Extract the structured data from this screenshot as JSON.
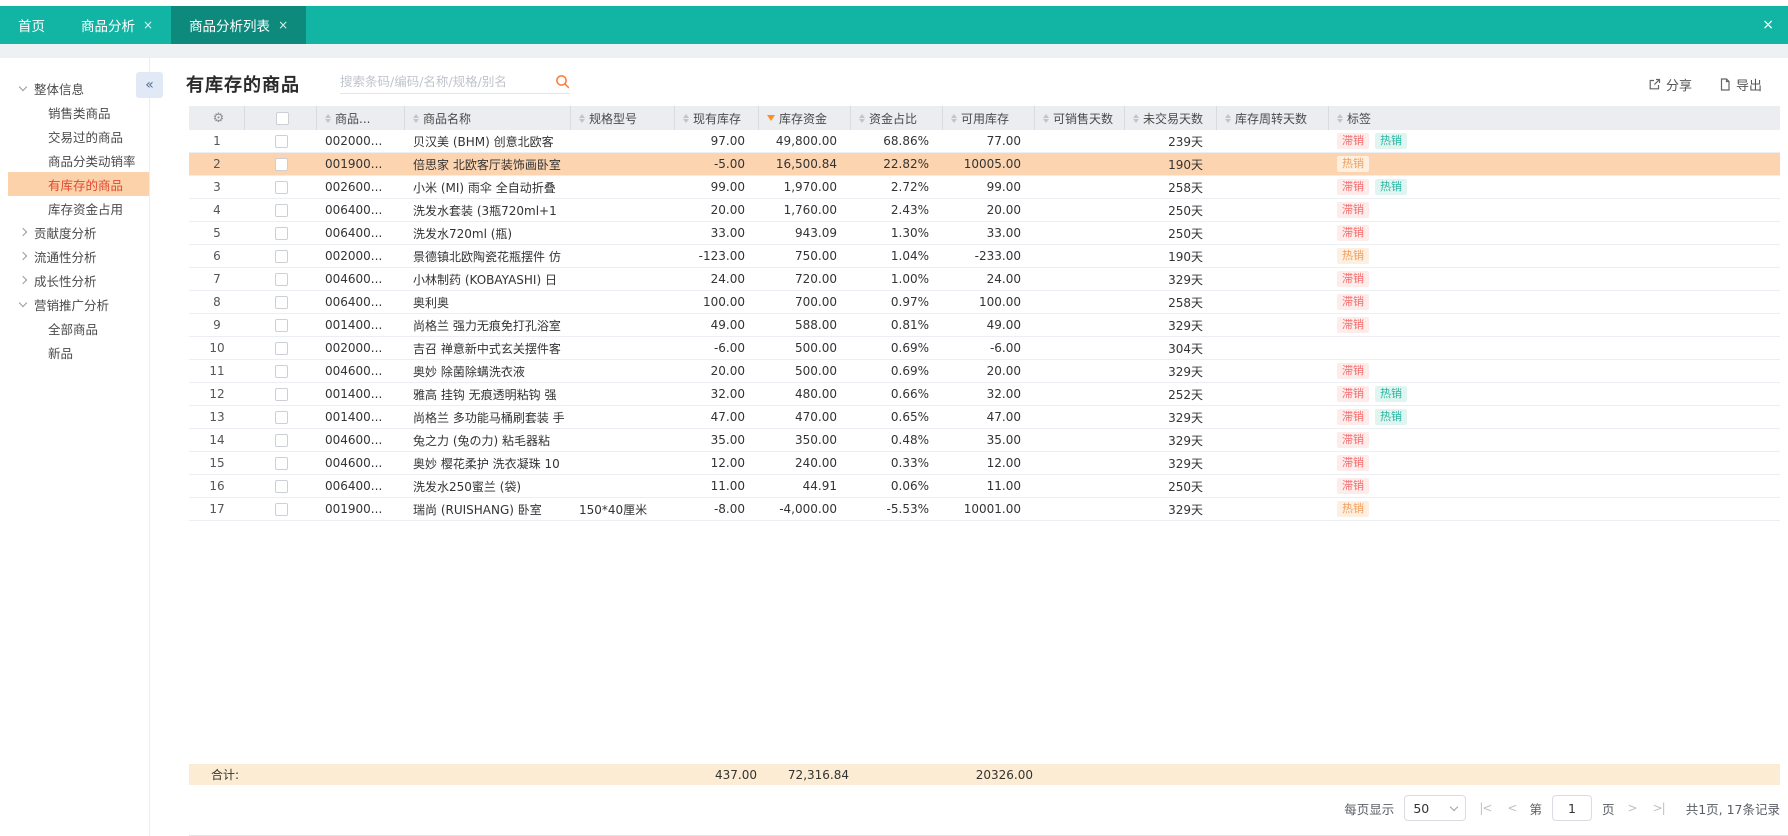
{
  "topbar": {
    "tabs": [
      {
        "label": "首页",
        "closable": false,
        "active": false
      },
      {
        "label": "商品分析",
        "closable": true,
        "active": false
      },
      {
        "label": "商品分析列表",
        "closable": true,
        "active": true
      }
    ],
    "close_all": "×"
  },
  "sidebar": {
    "items": [
      {
        "label": "整体信息",
        "level": 1,
        "chevron": "down"
      },
      {
        "label": "销售类商品",
        "level": 2
      },
      {
        "label": "交易过的商品",
        "level": 2
      },
      {
        "label": "商品分类动销率",
        "level": 2
      },
      {
        "label": "有库存的商品",
        "level": 2,
        "selected": true
      },
      {
        "label": "库存资金占用",
        "level": 2
      },
      {
        "label": "贡献度分析",
        "level": 1,
        "chevron": "right"
      },
      {
        "label": "流通性分析",
        "level": 1,
        "chevron": "right"
      },
      {
        "label": "成长性分析",
        "level": 1,
        "chevron": "right"
      },
      {
        "label": "营销推广分析",
        "level": 1,
        "chevron": "down"
      },
      {
        "label": "全部商品",
        "level": 2
      },
      {
        "label": "新品",
        "level": 2
      }
    ]
  },
  "header": {
    "title": "有库存的商品",
    "search_placeholder": "搜索条码/编码/名称/规格/别名",
    "share_label": "分享",
    "export_label": "导出",
    "collapse_glyph": "«"
  },
  "table": {
    "columns": [
      {
        "id": "num",
        "label": "",
        "icon": "gear-icon"
      },
      {
        "id": "check",
        "label": "",
        "icon": "checkbox"
      },
      {
        "id": "code",
        "label": "商品...",
        "sortable": true
      },
      {
        "id": "name",
        "label": "商品名称",
        "sortable": true
      },
      {
        "id": "spec",
        "label": "规格型号",
        "sortable": true
      },
      {
        "id": "stock",
        "label": "现有库存",
        "sortable": true
      },
      {
        "id": "fund",
        "label": "库存资金",
        "sortable": true,
        "sort": "desc"
      },
      {
        "id": "ratio",
        "label": "资金占比",
        "sortable": true
      },
      {
        "id": "available",
        "label": "可用库存",
        "sortable": true
      },
      {
        "id": "sell_days",
        "label": "可销售天数",
        "sortable": true
      },
      {
        "id": "idle_days",
        "label": "未交易天数",
        "sortable": true
      },
      {
        "id": "turnover",
        "label": "库存周转天数",
        "sortable": true
      },
      {
        "id": "tags",
        "label": "标签",
        "sortable": true
      }
    ],
    "rows": [
      {
        "num": "1",
        "code": "002000...",
        "name": "贝汉美 (BHM) 创意北欧客",
        "spec": "",
        "stock": "97.00",
        "fund": "49,800.00",
        "ratio": "68.86%",
        "available": "77.00",
        "sell_days": "",
        "idle_days": "239天",
        "turnover": "",
        "tags": [
          {
            "text": "滞销",
            "type": "stale"
          },
          {
            "text": "热销",
            "type": "hot-teal"
          }
        ]
      },
      {
        "num": "2",
        "code": "001900...",
        "name": "倍思家 北欧客厅装饰画卧室",
        "spec": "",
        "stock": "-5.00",
        "fund": "16,500.84",
        "ratio": "22.82%",
        "available": "10005.00",
        "sell_days": "",
        "idle_days": "190天",
        "turnover": "",
        "tags": [
          {
            "text": "热销",
            "type": "hot-orange"
          }
        ],
        "highlight": true
      },
      {
        "num": "3",
        "code": "002600...",
        "name": "小米 (MI) 雨伞 全自动折叠",
        "spec": "",
        "stock": "99.00",
        "fund": "1,970.00",
        "ratio": "2.72%",
        "available": "99.00",
        "sell_days": "",
        "idle_days": "258天",
        "turnover": "",
        "tags": [
          {
            "text": "滞销",
            "type": "stale"
          },
          {
            "text": "热销",
            "type": "hot-teal"
          }
        ]
      },
      {
        "num": "4",
        "code": "006400...",
        "name": "洗发水套装 (3瓶720ml+1",
        "spec": "",
        "stock": "20.00",
        "fund": "1,760.00",
        "ratio": "2.43%",
        "available": "20.00",
        "sell_days": "",
        "idle_days": "250天",
        "turnover": "",
        "tags": [
          {
            "text": "滞销",
            "type": "stale"
          }
        ]
      },
      {
        "num": "5",
        "code": "006400...",
        "name": "洗发水720ml (瓶)",
        "spec": "",
        "stock": "33.00",
        "fund": "943.09",
        "ratio": "1.30%",
        "available": "33.00",
        "sell_days": "",
        "idle_days": "250天",
        "turnover": "",
        "tags": [
          {
            "text": "滞销",
            "type": "stale"
          }
        ]
      },
      {
        "num": "6",
        "code": "002000...",
        "name": "景德镇北欧陶瓷花瓶摆件 仿",
        "spec": "",
        "stock": "-123.00",
        "fund": "750.00",
        "ratio": "1.04%",
        "available": "-233.00",
        "sell_days": "",
        "idle_days": "190天",
        "turnover": "",
        "tags": [
          {
            "text": "热销",
            "type": "hot-orange"
          }
        ]
      },
      {
        "num": "7",
        "code": "004600...",
        "name": "小林制药 (KOBAYASHI) 日",
        "spec": "",
        "stock": "24.00",
        "fund": "720.00",
        "ratio": "1.00%",
        "available": "24.00",
        "sell_days": "",
        "idle_days": "329天",
        "turnover": "",
        "tags": [
          {
            "text": "滞销",
            "type": "stale"
          }
        ]
      },
      {
        "num": "8",
        "code": "006400...",
        "name": "奥利奥",
        "spec": "",
        "stock": "100.00",
        "fund": "700.00",
        "ratio": "0.97%",
        "available": "100.00",
        "sell_days": "",
        "idle_days": "258天",
        "turnover": "",
        "tags": [
          {
            "text": "滞销",
            "type": "stale"
          }
        ]
      },
      {
        "num": "9",
        "code": "001400...",
        "name": "尚格兰 强力无痕免打孔浴室",
        "spec": "",
        "stock": "49.00",
        "fund": "588.00",
        "ratio": "0.81%",
        "available": "49.00",
        "sell_days": "",
        "idle_days": "329天",
        "turnover": "",
        "tags": [
          {
            "text": "滞销",
            "type": "stale"
          }
        ]
      },
      {
        "num": "10",
        "code": "002000...",
        "name": "吉召 禅意新中式玄关摆件客",
        "spec": "",
        "stock": "-6.00",
        "fund": "500.00",
        "ratio": "0.69%",
        "available": "-6.00",
        "sell_days": "",
        "idle_days": "304天",
        "turnover": "",
        "tags": []
      },
      {
        "num": "11",
        "code": "004600...",
        "name": "奥妙 除菌除螨洗衣液",
        "spec": "",
        "stock": "20.00",
        "fund": "500.00",
        "ratio": "0.69%",
        "available": "20.00",
        "sell_days": "",
        "idle_days": "329天",
        "turnover": "",
        "tags": [
          {
            "text": "滞销",
            "type": "stale"
          }
        ]
      },
      {
        "num": "12",
        "code": "001400...",
        "name": "雅高 挂钩 无痕透明粘钩 强",
        "spec": "",
        "stock": "32.00",
        "fund": "480.00",
        "ratio": "0.66%",
        "available": "32.00",
        "sell_days": "",
        "idle_days": "252天",
        "turnover": "",
        "tags": [
          {
            "text": "滞销",
            "type": "stale"
          },
          {
            "text": "热销",
            "type": "hot-teal"
          }
        ]
      },
      {
        "num": "13",
        "code": "001400...",
        "name": "尚格兰 多功能马桶刷套装 手",
        "spec": "",
        "stock": "47.00",
        "fund": "470.00",
        "ratio": "0.65%",
        "available": "47.00",
        "sell_days": "",
        "idle_days": "329天",
        "turnover": "",
        "tags": [
          {
            "text": "滞销",
            "type": "stale"
          },
          {
            "text": "热销",
            "type": "hot-teal"
          }
        ]
      },
      {
        "num": "14",
        "code": "004600...",
        "name": "兔之力 (兔の力) 粘毛器粘",
        "spec": "",
        "stock": "35.00",
        "fund": "350.00",
        "ratio": "0.48%",
        "available": "35.00",
        "sell_days": "",
        "idle_days": "329天",
        "turnover": "",
        "tags": [
          {
            "text": "滞销",
            "type": "stale"
          }
        ]
      },
      {
        "num": "15",
        "code": "004600...",
        "name": "奥妙 樱花柔护 洗衣凝珠 10",
        "spec": "",
        "stock": "12.00",
        "fund": "240.00",
        "ratio": "0.33%",
        "available": "12.00",
        "sell_days": "",
        "idle_days": "329天",
        "turnover": "",
        "tags": [
          {
            "text": "滞销",
            "type": "stale"
          }
        ]
      },
      {
        "num": "16",
        "code": "006400...",
        "name": "洗发水250蜜兰 (袋)",
        "spec": "",
        "stock": "11.00",
        "fund": "44.91",
        "ratio": "0.06%",
        "available": "11.00",
        "sell_days": "",
        "idle_days": "250天",
        "turnover": "",
        "tags": [
          {
            "text": "滞销",
            "type": "stale"
          }
        ]
      },
      {
        "num": "17",
        "code": "001900...",
        "name": "瑞尚 (RUISHANG) 卧室",
        "spec": "150*40厘米",
        "stock": "-8.00",
        "fund": "-4,000.00",
        "ratio": "-5.53%",
        "available": "10001.00",
        "sell_days": "",
        "idle_days": "329天",
        "turnover": "",
        "tags": [
          {
            "text": "热销",
            "type": "hot-orange"
          }
        ]
      }
    ],
    "summary": {
      "label": "合计:",
      "stock": "437.00",
      "fund": "72,316.84",
      "available": "20326.00"
    }
  },
  "pagination": {
    "per_page_label": "每页显示",
    "per_page_value": "50",
    "first": "|<",
    "prev": "<",
    "next": ">",
    "last": ">|",
    "page_prefix": "第",
    "page_value": "1",
    "page_suffix": "页",
    "total_text": "共1页, 17条记录"
  },
  "colors": {
    "teal": "#12b5a3",
    "teal_dark": "#0d8a7c",
    "row_highlight": "#fcd4b0",
    "sidebar_selected_bg": "#fcd2ab",
    "sidebar_selected_text": "#e2492f",
    "sort_active": "#ff8f1f",
    "summary_bg": "#fcecd3",
    "tag_stale_text": "#f46c6c",
    "tag_stale_bg": "#fdecea",
    "tag_hot_teal_text": "#27b5a2",
    "tag_hot_teal_bg": "#e1f5f0",
    "tag_hot_orange_text": "#f09d5d",
    "tag_hot_orange_bg": "#fdf0e1",
    "search_icon": "#ff7733"
  }
}
